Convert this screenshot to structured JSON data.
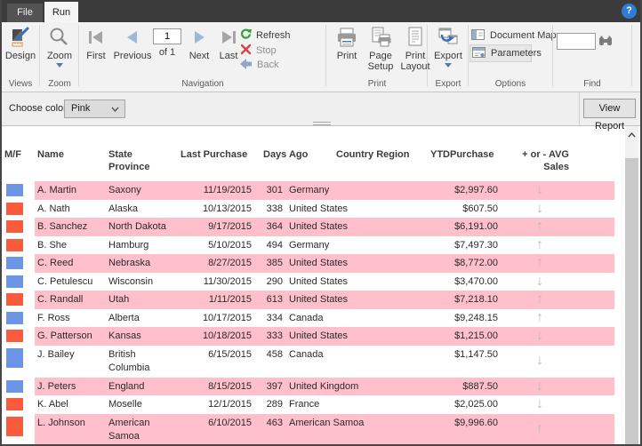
{
  "titlebar": {
    "file_tab": "File",
    "run_tab": "Run",
    "help": "?"
  },
  "ribbon": {
    "views": {
      "group_label": "Views",
      "design": "Design"
    },
    "zoom": {
      "group_label": "Zoom",
      "zoom": "Zoom"
    },
    "navigation": {
      "group_label": "Navigation",
      "first": "First",
      "previous": "Previous",
      "page_value": "1",
      "page_of": "of 1",
      "next": "Next",
      "last": "Last",
      "refresh": "Refresh",
      "stop": "Stop",
      "back": "Back"
    },
    "print": {
      "group_label": "Print",
      "print": "Print",
      "page_setup_line1": "Page",
      "page_setup_line2": "Setup",
      "print_layout_line1": "Print",
      "print_layout_line2": "Layout"
    },
    "export": {
      "group_label": "Export",
      "export": "Export"
    },
    "options": {
      "group_label": "Options",
      "document_map": "Document Map",
      "parameters": "Parameters"
    },
    "find": {
      "group_label": "Find",
      "search_value": ""
    }
  },
  "parameter_bar": {
    "choose_color_label": "Choose color",
    "color_value": "Pink",
    "view_report": "View Report"
  },
  "table": {
    "headers": {
      "mf": "M/F",
      "name": "Name",
      "state_line1": "State",
      "state_line2": "Province",
      "last_purchase": "Last Purchase",
      "days_ago": "Days Ago",
      "country": "Country Region",
      "ytd": "YTDPurchase",
      "avg_line1": "+ or - AVG",
      "avg_line2": "Sales"
    },
    "rows": [
      {
        "swatch": "blue",
        "name": "A. Martin",
        "state": "Saxony",
        "last_purchase": "11/19/2015",
        "days_ago": "301",
        "country": "Germany",
        "ytd": "$2,997.60",
        "trend": "down",
        "band": "pink",
        "tall": false
      },
      {
        "swatch": "red",
        "name": "A. Nath",
        "state": "Alaska",
        "last_purchase": "10/13/2015",
        "days_ago": "338",
        "country": "United States",
        "ytd": "$607.50",
        "trend": "down",
        "band": "white",
        "tall": false
      },
      {
        "swatch": "red",
        "name": "B. Sanchez",
        "state": "North Dakota",
        "last_purchase": "9/17/2015",
        "days_ago": "364",
        "country": "United States",
        "ytd": "$6,191.00",
        "trend": "up",
        "band": "pink",
        "tall": false
      },
      {
        "swatch": "red",
        "name": "B. She",
        "state": "Hamburg",
        "last_purchase": "5/10/2015",
        "days_ago": "494",
        "country": "Germany",
        "ytd": "$7,497.30",
        "trend": "up",
        "band": "white",
        "tall": false
      },
      {
        "swatch": "blue",
        "name": "C. Reed",
        "state": "Nebraska",
        "last_purchase": "8/27/2015",
        "days_ago": "385",
        "country": "United States",
        "ytd": "$8,772.00",
        "trend": "up",
        "band": "pink",
        "tall": false
      },
      {
        "swatch": "blue",
        "name": "C. Petulescu",
        "state": "Wisconsin",
        "last_purchase": "11/30/2015",
        "days_ago": "290",
        "country": "United States",
        "ytd": "$3,470.00",
        "trend": "down",
        "band": "white",
        "tall": false
      },
      {
        "swatch": "red",
        "name": "C. Randall",
        "state": "Utah",
        "last_purchase": "1/11/2015",
        "days_ago": "613",
        "country": "United States",
        "ytd": "$7,218.10",
        "trend": "up",
        "band": "pink",
        "tall": false
      },
      {
        "swatch": "blue",
        "name": "F. Ross",
        "state": "Alberta",
        "last_purchase": "10/17/2015",
        "days_ago": "334",
        "country": "Canada",
        "ytd": "$9,248.15",
        "trend": "up",
        "band": "white",
        "tall": false
      },
      {
        "swatch": "red",
        "name": "G. Patterson",
        "state": "Kansas",
        "last_purchase": "10/18/2015",
        "days_ago": "333",
        "country": "United States",
        "ytd": "$1,215.00",
        "trend": "down",
        "band": "pink",
        "tall": false
      },
      {
        "swatch": "blue",
        "name": "J. Bailey",
        "state": "British Columbia",
        "last_purchase": "6/15/2015",
        "days_ago": "458",
        "country": "Canada",
        "ytd": "$1,147.50",
        "trend": "down",
        "band": "white",
        "tall": true
      },
      {
        "swatch": "blue",
        "name": "J. Peters",
        "state": "England",
        "last_purchase": "8/15/2015",
        "days_ago": "397",
        "country": "United Kingdom",
        "ytd": "$887.50",
        "trend": "down",
        "band": "pink",
        "tall": false
      },
      {
        "swatch": "red",
        "name": "K. Abel",
        "state": "Moselle",
        "last_purchase": "12/1/2015",
        "days_ago": "289",
        "country": "France",
        "ytd": "$2,025.00",
        "trend": "down",
        "band": "white",
        "tall": false
      },
      {
        "swatch": "red",
        "name": "L. Johnson",
        "state": "American Samoa",
        "last_purchase": "6/10/2015",
        "days_ago": "463",
        "country": "American Samoa",
        "ytd": "$9,996.60",
        "trend": "up",
        "band": "pink",
        "tall": true
      }
    ]
  },
  "colors": {
    "pink_row": "#FFC0CB",
    "blue_swatch": "#6C95E8",
    "red_swatch": "#FA5B3D",
    "help_blue": "#2E7CD6"
  }
}
